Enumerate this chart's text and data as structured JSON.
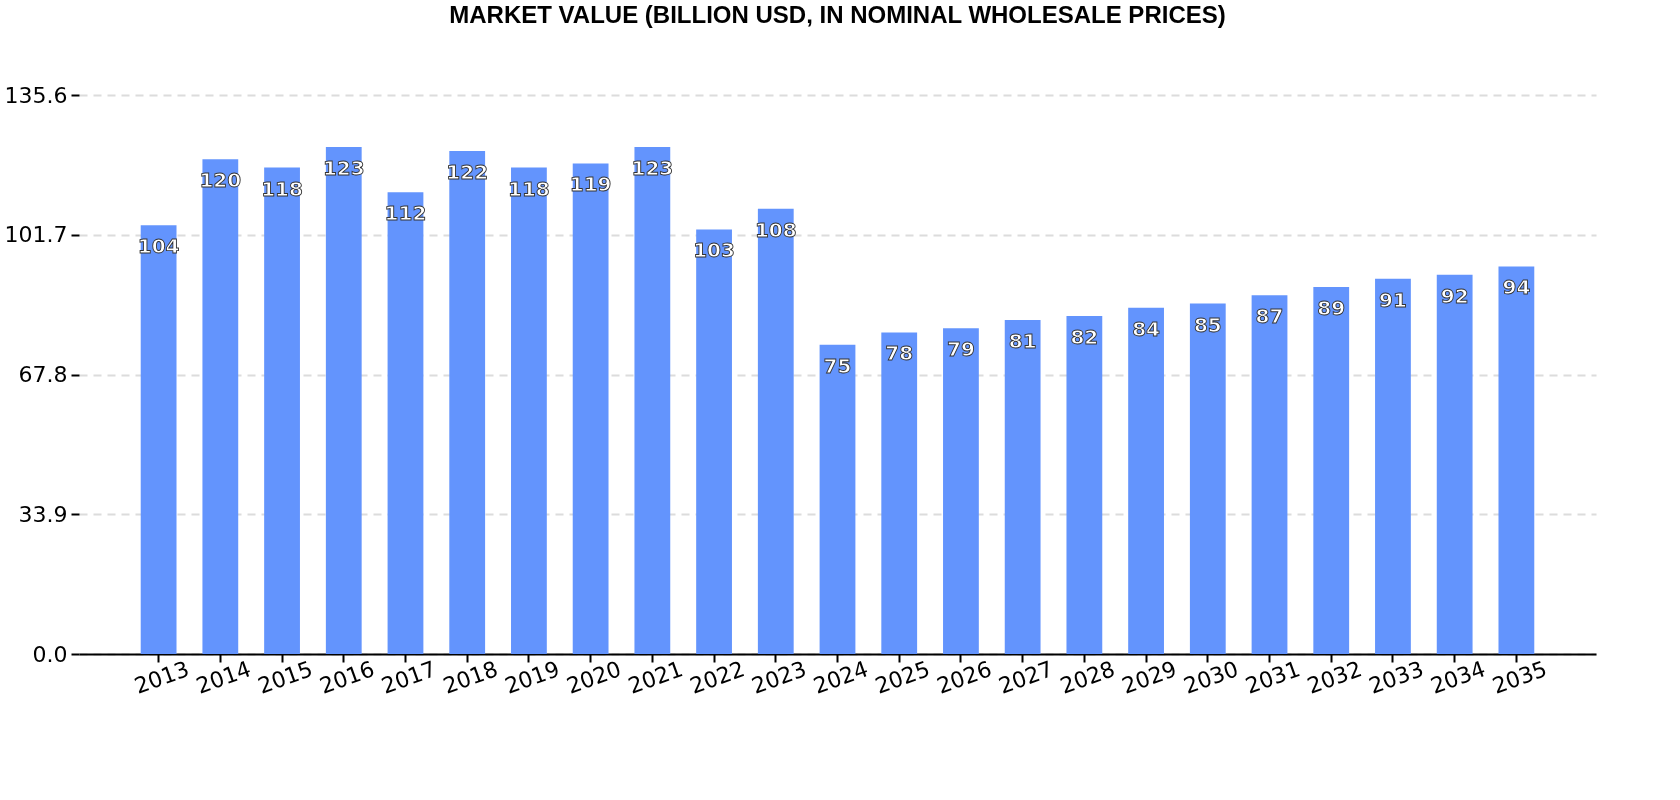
{
  "chart_data": {
    "type": "bar",
    "title": "MARKET VALUE (BILLION USD, IN NOMINAL WHOLESALE PRICES)",
    "categories": [
      "2013",
      "2014",
      "2015",
      "2016",
      "2017",
      "2018",
      "2019",
      "2020",
      "2021",
      "2022",
      "2023",
      "2024",
      "2025",
      "2026",
      "2027",
      "2028",
      "2029",
      "2030",
      "2031",
      "2032",
      "2033",
      "2034",
      "2035"
    ],
    "values": [
      104,
      120,
      118,
      123,
      112,
      122,
      118,
      119,
      123,
      103,
      108,
      75,
      78,
      79,
      81,
      82,
      84,
      85,
      87,
      89,
      91,
      92,
      94
    ],
    "color": "#6394fd",
    "ylim": [
      0,
      135.6
    ],
    "yticks": [
      {
        "value": 0,
        "label": "0.0"
      },
      33.9,
      67.8,
      101.7,
      135.6
    ],
    "grid": "y",
    "data_labels": true
  }
}
